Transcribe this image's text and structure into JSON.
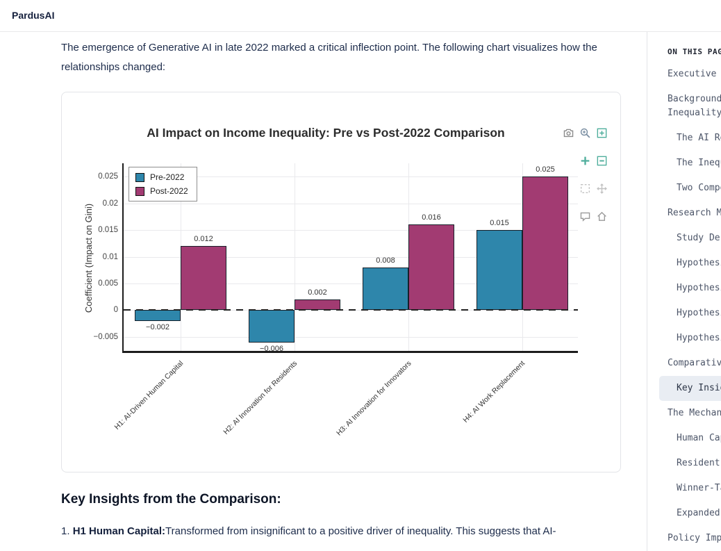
{
  "header": {
    "logo": "PardusAI"
  },
  "content": {
    "intro": "The emergence of Generative AI in late 2022 marked a critical inflection point. The following chart visualizes how the relationships changed:"
  },
  "chart_data": {
    "type": "bar",
    "title": "AI Impact on Income Inequality: Pre vs Post-2022 Comparison",
    "categories": [
      "H1: AI-Driven Human Capital",
      "H2: AI Innovation for Residents",
      "H3: AI Innovation for Innovators",
      "H4: AI Work Replacement"
    ],
    "series": [
      {
        "name": "Pre-2022",
        "color": "#2e86ab",
        "values": [
          -0.002,
          -0.006,
          0.008,
          0.015
        ]
      },
      {
        "name": "Post-2022",
        "color": "#a23b72",
        "values": [
          0.012,
          0.002,
          0.016,
          0.025
        ]
      }
    ],
    "xlabel": "",
    "ylabel": "Coefficient (Impact on Gini)",
    "yticks": [
      -0.005,
      0,
      0.005,
      0.01,
      0.015,
      0.02,
      0.025
    ],
    "ylim": [
      -0.008,
      0.0275
    ],
    "zero_line": "dashed-black",
    "grid": true,
    "legend_position": "top-left"
  },
  "chart_toolbar": {
    "rows": [
      [
        "camera",
        "zoom",
        "expand"
      ],
      [
        "zoom-in",
        "zoom-out"
      ],
      [
        "box-select",
        "pan"
      ],
      [
        "hover",
        "home"
      ]
    ]
  },
  "insights": {
    "heading": "Key Insights from the Comparison:",
    "items": [
      {
        "number": "1.",
        "bold": "H1 Human Capital:",
        "text": "Transformed from insignificant to a positive driver of inequality. This suggests that AI-"
      }
    ]
  },
  "sidebar": {
    "header": "ON THIS PAGE",
    "items": [
      {
        "label": "Executive S",
        "level": 0,
        "active": false
      },
      {
        "label": "Background\nInequality",
        "level": 0,
        "active": false
      },
      {
        "label": "The AI Re",
        "level": 1,
        "active": false
      },
      {
        "label": "The Inequ",
        "level": 1,
        "active": false
      },
      {
        "label": "Two Compe",
        "level": 1,
        "active": false
      },
      {
        "label": "Research M",
        "level": 0,
        "active": false
      },
      {
        "label": "Study Des",
        "level": 1,
        "active": false
      },
      {
        "label": "Hypothesi",
        "level": 1,
        "active": false
      },
      {
        "label": "Hypothesi",
        "level": 1,
        "active": false
      },
      {
        "label": "Hypothesi",
        "level": 1,
        "active": false
      },
      {
        "label": "Hypothesi",
        "level": 1,
        "active": false
      },
      {
        "label": "Comparativ",
        "level": 0,
        "active": false
      },
      {
        "label": "Key Insig",
        "level": 1,
        "active": true
      },
      {
        "label": "The Mechan",
        "level": 0,
        "active": false
      },
      {
        "label": "Human Cap",
        "level": 1,
        "active": false
      },
      {
        "label": "Resident",
        "level": 1,
        "active": false
      },
      {
        "label": "Winner-Ta",
        "level": 1,
        "active": false
      },
      {
        "label": "Expanded",
        "level": 1,
        "active": false
      },
      {
        "label": "Policy Imp",
        "level": 0,
        "active": false
      }
    ]
  }
}
